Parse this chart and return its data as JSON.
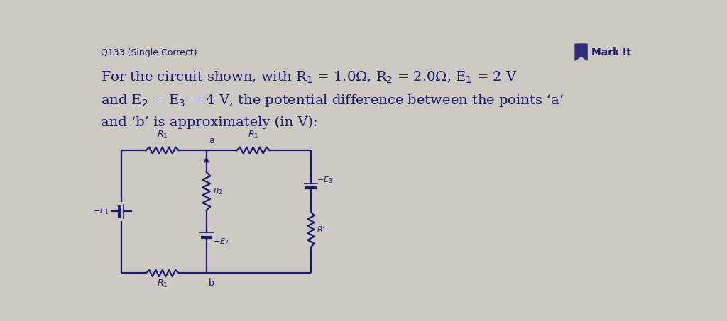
{
  "bg_color": "#cdc8c2",
  "title": "Q133 (Single Correct)",
  "mark_it": "Mark It",
  "line1": "For the circuit shown, with R$_1$ = 1.0Ω, R$_2$ = 2.0Ω, E$_1$ = 2 V",
  "line2": "and E$_2$ = E$_3$ = 4 V, the potential difference between the points ‘a’",
  "line3": "and ‘b’ is approximately (in V):",
  "text_color": "#1a1a6e",
  "title_fontsize": 9,
  "body_fontsize": 14,
  "icon_color": "#2e2e7a"
}
